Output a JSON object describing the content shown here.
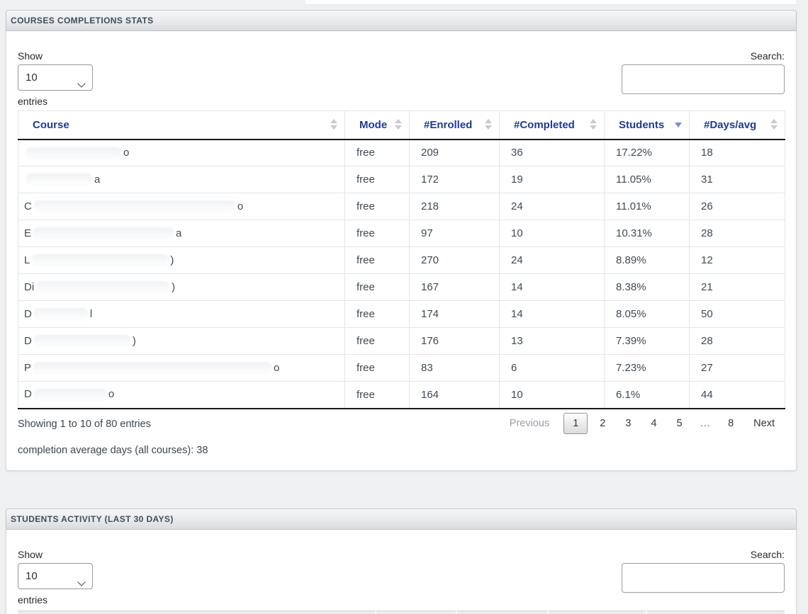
{
  "colors": {
    "table_header_text": "#1e3a96",
    "active_sort_arrow": "#7b89d5",
    "panel_title_text": "#404d5c"
  },
  "panels": {
    "courses": {
      "title": "COURSES COMPLETIONS STATS",
      "show_label": "Show",
      "page_size": "10",
      "entries_label": "entries",
      "search_label": "Search:",
      "search_value": "",
      "table": {
        "columns": [
          {
            "label": "Course",
            "sorted": null
          },
          {
            "label": "Mode",
            "sorted": null
          },
          {
            "label": "#Enrolled",
            "sorted": null
          },
          {
            "label": "#Completed",
            "sorted": null
          },
          {
            "label": "Students",
            "sorted": "desc"
          },
          {
            "label": "#Days/avg",
            "sorted": null
          }
        ],
        "rows": [
          {
            "course_visible_start": "",
            "course_visible_end": "o",
            "redacted_width": 136,
            "mode": "free",
            "enrolled": "209",
            "completed": "36",
            "students": "17.22%",
            "days_avg": "18"
          },
          {
            "course_visible_start": "",
            "course_visible_end": "a",
            "redacted_width": 95,
            "mode": "free",
            "enrolled": "172",
            "completed": "19",
            "students": "11.05%",
            "days_avg": "31"
          },
          {
            "course_visible_start": "C",
            "course_visible_end": "o",
            "redacted_width": 286,
            "mode": "free",
            "enrolled": "218",
            "completed": "24",
            "students": "11.01%",
            "days_avg": "26"
          },
          {
            "course_visible_start": "E",
            "course_visible_end": "a",
            "redacted_width": 200,
            "mode": "free",
            "enrolled": "97",
            "completed": "10",
            "students": "10.31%",
            "days_avg": "28"
          },
          {
            "course_visible_start": "L",
            "course_visible_end": ")",
            "redacted_width": 194,
            "mode": "free",
            "enrolled": "270",
            "completed": "24",
            "students": "8.89%",
            "days_avg": "12"
          },
          {
            "course_visible_start": "Di",
            "course_visible_end": ")",
            "redacted_width": 190,
            "mode": "free",
            "enrolled": "167",
            "completed": "14",
            "students": "8.38%",
            "days_avg": "21"
          },
          {
            "course_visible_start": "D",
            "course_visible_end": "l",
            "redacted_width": 78,
            "mode": "free",
            "enrolled": "174",
            "completed": "14",
            "students": "8.05%",
            "days_avg": "50"
          },
          {
            "course_visible_start": "D",
            "course_visible_end": ")",
            "redacted_width": 138,
            "mode": "free",
            "enrolled": "176",
            "completed": "13",
            "students": "7.39%",
            "days_avg": "28"
          },
          {
            "course_visible_start": "P",
            "course_visible_end": "o",
            "redacted_width": 338,
            "mode": "free",
            "enrolled": "83",
            "completed": "6",
            "students": "7.23%",
            "days_avg": "27"
          },
          {
            "course_visible_start": "D",
            "course_visible_end": "o",
            "redacted_width": 104,
            "mode": "free",
            "enrolled": "164",
            "completed": "10",
            "students": "6.1%",
            "days_avg": "44"
          }
        ]
      },
      "info": "Showing 1 to 10 of 80 entries",
      "pagination": {
        "previous_label": "Previous",
        "pages": [
          "1",
          "2",
          "3",
          "4",
          "5",
          "…",
          "8"
        ],
        "active_page": "1",
        "next_label": "Next"
      },
      "completion_note": "completion average days (all courses): 38"
    },
    "students": {
      "title": "STUDENTS ACTIVITY (LAST 30 DAYS)",
      "show_label": "Show",
      "page_size": "10",
      "entries_label": "entries",
      "search_label": "Search:",
      "search_value": ""
    }
  }
}
